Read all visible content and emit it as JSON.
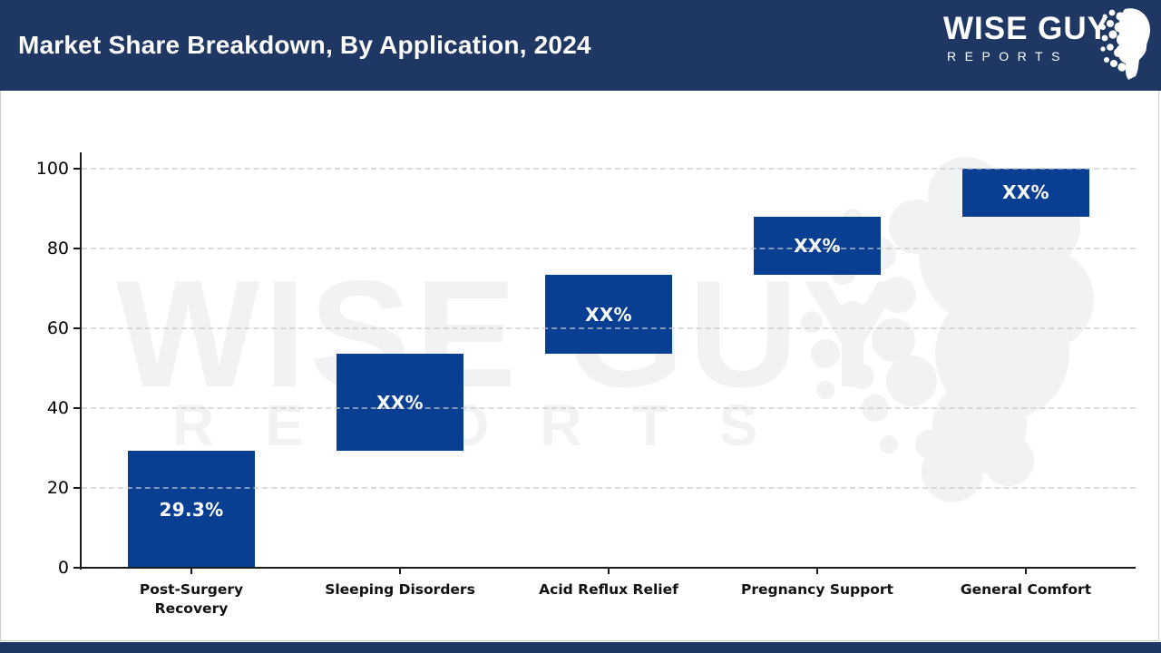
{
  "colors": {
    "header_bg": "#1f3863",
    "footer_bg": "#1f3863",
    "bar": "#083f92",
    "watermark": "#f1f2f4",
    "grid": "#c8c8c8",
    "axis": "#1a1a1a",
    "title_text": "#ffffff",
    "bar_label_text": "#ffffff"
  },
  "header": {
    "title": "Market Share Breakdown, By Application, 2024",
    "logo": {
      "line1": "WISE GUY",
      "line2": "REPORTS"
    }
  },
  "watermark": {
    "line1": "WISE GUY",
    "line2": "REPORTS"
  },
  "chart_data": {
    "type": "bar",
    "subtype": "waterfall",
    "title": "Market Share Breakdown, By Application, 2024",
    "categories": [
      "Post-Surgery Recovery",
      "Sleeping Disorders",
      "Acid Reflux Relief",
      "Pregnancy Support",
      "General Comfort"
    ],
    "category_lines": [
      [
        "Post-Surgery",
        "Recovery"
      ],
      [
        "Sleeping Disorders"
      ],
      [
        "Acid Reflux Relief"
      ],
      [
        "Pregnancy Support"
      ],
      [
        "General Comfort"
      ]
    ],
    "segments": [
      {
        "category": "Post-Surgery Recovery",
        "start": 0,
        "end": 29.3,
        "label": "29.3%"
      },
      {
        "category": "Sleeping Disorders",
        "start": 29.3,
        "end": 53.6,
        "label": "XX%"
      },
      {
        "category": "Acid Reflux Relief",
        "start": 53.6,
        "end": 73.4,
        "label": "XX%"
      },
      {
        "category": "Pregnancy Support",
        "start": 73.4,
        "end": 88,
        "label": "XX%"
      },
      {
        "category": "General Comfort",
        "start": 88,
        "end": 100,
        "label": "XX%"
      }
    ],
    "xlabel": "",
    "ylabel": "",
    "ylim": [
      0,
      100
    ],
    "yticks": [
      0,
      20,
      40,
      60,
      80,
      100
    ],
    "grid": true,
    "legend": false,
    "bar_color": "#083f92"
  }
}
